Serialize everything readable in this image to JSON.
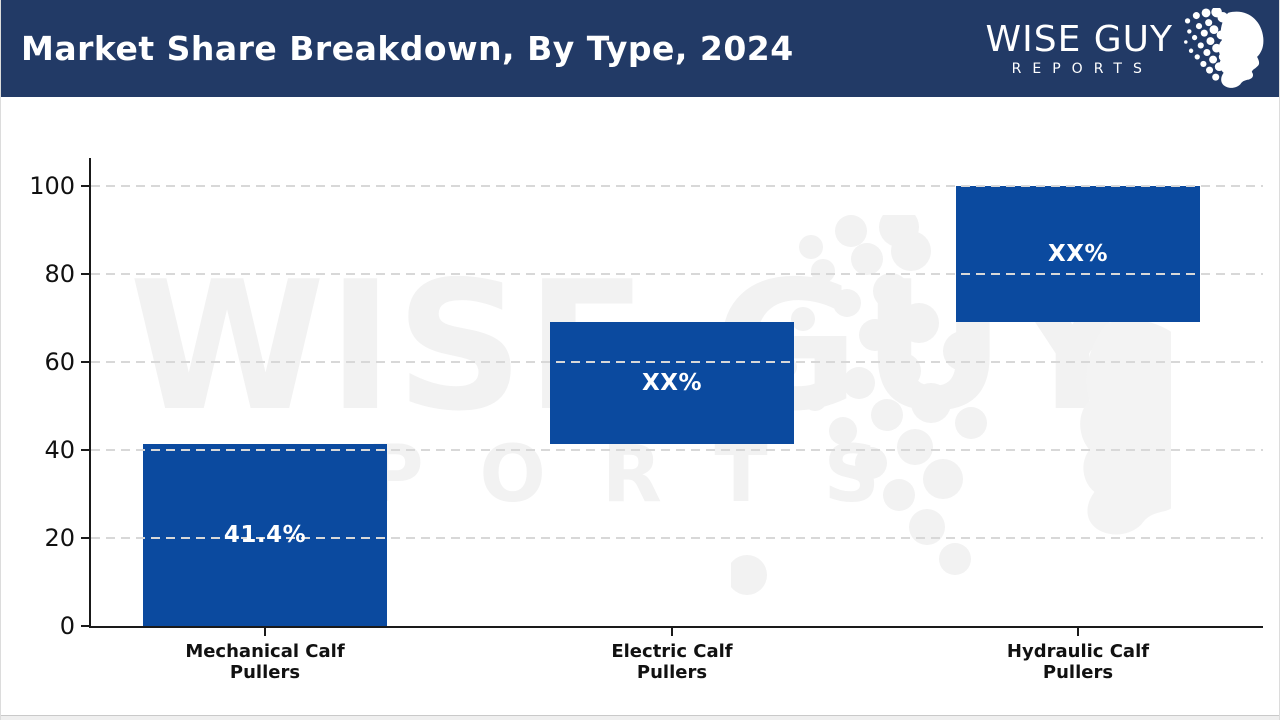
{
  "header": {
    "title": "Market Share Breakdown, By Type, 2024",
    "logo": {
      "line1": "WISE GUY",
      "line2": "REPORTS"
    }
  },
  "watermark": {
    "line1": "WISE GUY",
    "line2": "REPORTS"
  },
  "colors": {
    "header_bg": "#223a66",
    "bar_blue": "#0b4a9f",
    "grid_gray": "#d8d8d8",
    "axis_black": "#1a1a1a",
    "watermark_gray": "#f2f2f2"
  },
  "chart_data": {
    "type": "bar",
    "variant": "floating-waterfall",
    "title": "Market Share Breakdown, By Type, 2024",
    "categories": [
      "Mechanical Calf Pullers",
      "Electric Calf Pullers",
      "Hydraulic Calf Pullers"
    ],
    "segments": [
      {
        "category": "Mechanical Calf Pullers",
        "start": 0,
        "end": 41.4,
        "label": "41.4%"
      },
      {
        "category": "Electric Calf Pullers",
        "start": 41.4,
        "end": 69,
        "label": "XX%"
      },
      {
        "category": "Hydraulic Calf Pullers",
        "start": 69,
        "end": 100,
        "label": "XX%"
      }
    ],
    "ylim": [
      0,
      100
    ],
    "yticks": [
      0,
      20,
      40,
      60,
      80,
      100
    ],
    "grid": {
      "axis": "y",
      "style": "dashed",
      "color": "#d8d8d8"
    },
    "bar_color": "#0b4a9f",
    "bar_label_color": "#ffffff",
    "axis_color": "#1a1a1a",
    "legend": "none"
  }
}
